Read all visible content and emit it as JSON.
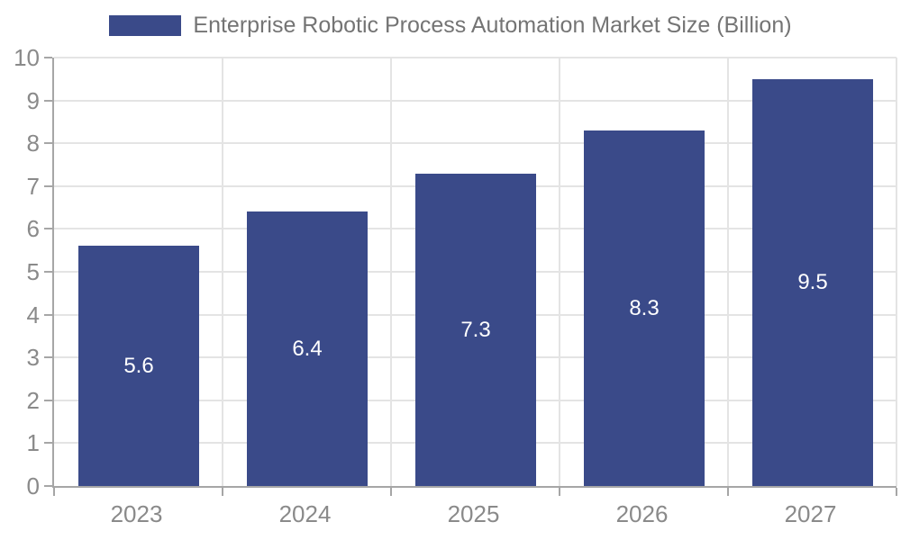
{
  "chart_data": {
    "type": "bar",
    "title": "",
    "series_name": "Enterprise Robotic Process Automation Market Size (Billion)",
    "categories": [
      "2023",
      "2024",
      "2025",
      "2026",
      "2027"
    ],
    "values": [
      5.6,
      6.4,
      7.3,
      8.3,
      9.5
    ],
    "data_labels": [
      "5.6",
      "6.4",
      "7.3",
      "8.3",
      "9.5"
    ],
    "xlabel": "",
    "ylabel": "",
    "ylim": [
      0,
      10
    ],
    "ytick_step": 1,
    "ytick_labels": [
      "0",
      "1",
      "2",
      "3",
      "4",
      "5",
      "6",
      "7",
      "8",
      "9",
      "10"
    ],
    "grid": true,
    "legend_position": "top",
    "colors": {
      "bar": "#3a4a89",
      "bar_label": "#ffffff",
      "axis_line": "#a6a6a6",
      "grid_line": "#e4e4e4",
      "axis_text": "#8a8a8a",
      "legend_text": "#747474"
    }
  }
}
